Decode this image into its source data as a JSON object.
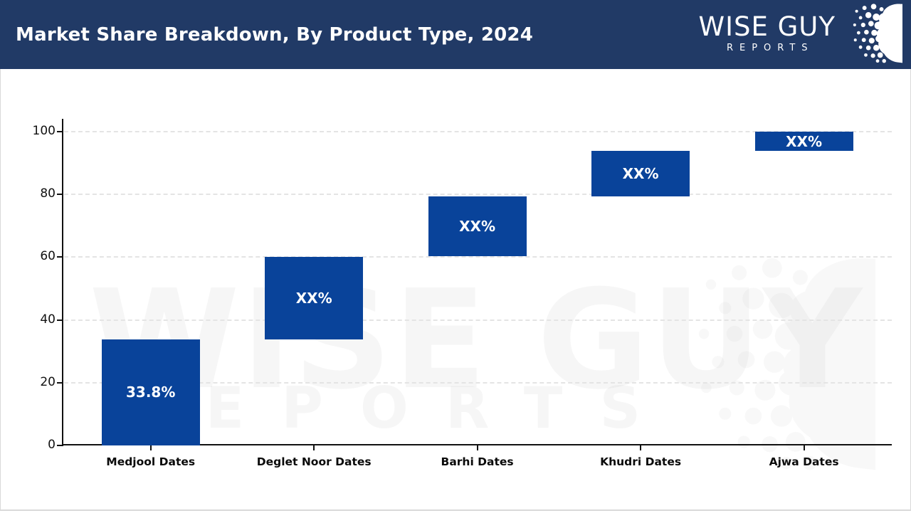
{
  "header": {
    "title": "Market Share Breakdown, By Product Type, 2024",
    "bg_color": "#213a66",
    "logo": {
      "line1": "WISE GUY",
      "line2": "REPORTS"
    }
  },
  "watermark": {
    "line1": "WISE GUY",
    "line2": "REPORTS"
  },
  "chart_data": {
    "type": "bar",
    "subtype": "waterfall",
    "title": "Market Share Breakdown, By Product Type, 2024",
    "categories": [
      "Medjool Dates",
      "Deglet Noor Dates",
      "Barhi Dates",
      "Khudri Dates",
      "Ajwa Dates"
    ],
    "segments": [
      {
        "category": "Medjool Dates",
        "start": 0,
        "end": 33.8,
        "label": "33.8%"
      },
      {
        "category": "Deglet Noor Dates",
        "start": 33.8,
        "end": 60.2,
        "label": "XX%"
      },
      {
        "category": "Barhi Dates",
        "start": 60.2,
        "end": 79.3,
        "label": "XX%"
      },
      {
        "category": "Khudri Dates",
        "start": 79.3,
        "end": 93.8,
        "label": "XX%"
      },
      {
        "category": "Ajwa Dates",
        "start": 93.8,
        "end": 100,
        "label": "XX%"
      }
    ],
    "yticks": [
      0,
      20,
      40,
      60,
      80,
      100
    ],
    "ylim": [
      0,
      105
    ],
    "xlabel": "",
    "ylabel": "",
    "grid": "horizontal-dashed",
    "legend": "none",
    "bar_color": "#09439a",
    "bar_label_color": "#ffffff"
  }
}
